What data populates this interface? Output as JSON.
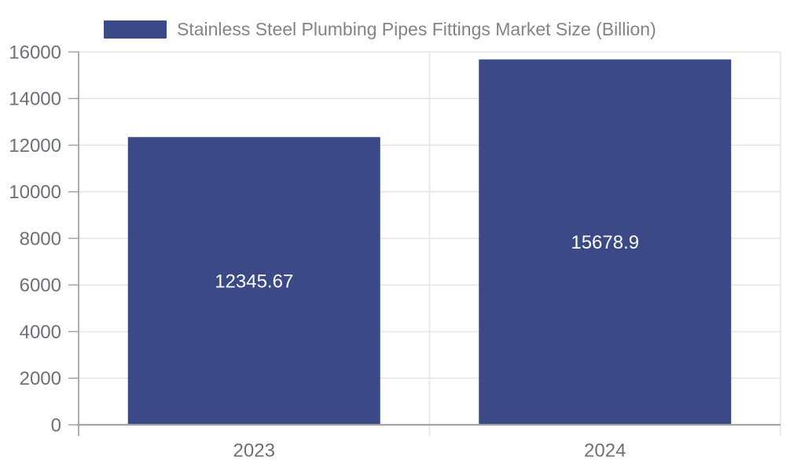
{
  "chart_data": {
    "type": "bar",
    "title": "Stainless Steel Plumbing Pipes Fittings Market Size (Billion)",
    "categories": [
      "2023",
      "2024"
    ],
    "series": [
      {
        "name": "Stainless Steel Plumbing Pipes Fittings Market Size (Billion)",
        "values": [
          12345.67,
          15678.9
        ]
      }
    ],
    "value_labels": [
      "12345.67",
      "15678.9"
    ],
    "xlabel": "",
    "ylabel": "",
    "ylim": [
      0,
      16000
    ],
    "y_ticks": [
      0,
      2000,
      4000,
      6000,
      8000,
      10000,
      12000,
      14000,
      16000
    ],
    "grid": true,
    "legend_position": "top-left",
    "colors": {
      "bar": "#3B4A87",
      "value_label": "#FFFFFF",
      "axis_text": "#6E7079",
      "legend_text": "#848484",
      "grid_line": "#E4E4E4",
      "axis_line": "#A4A4A4",
      "background": "#FFFFFF"
    }
  }
}
